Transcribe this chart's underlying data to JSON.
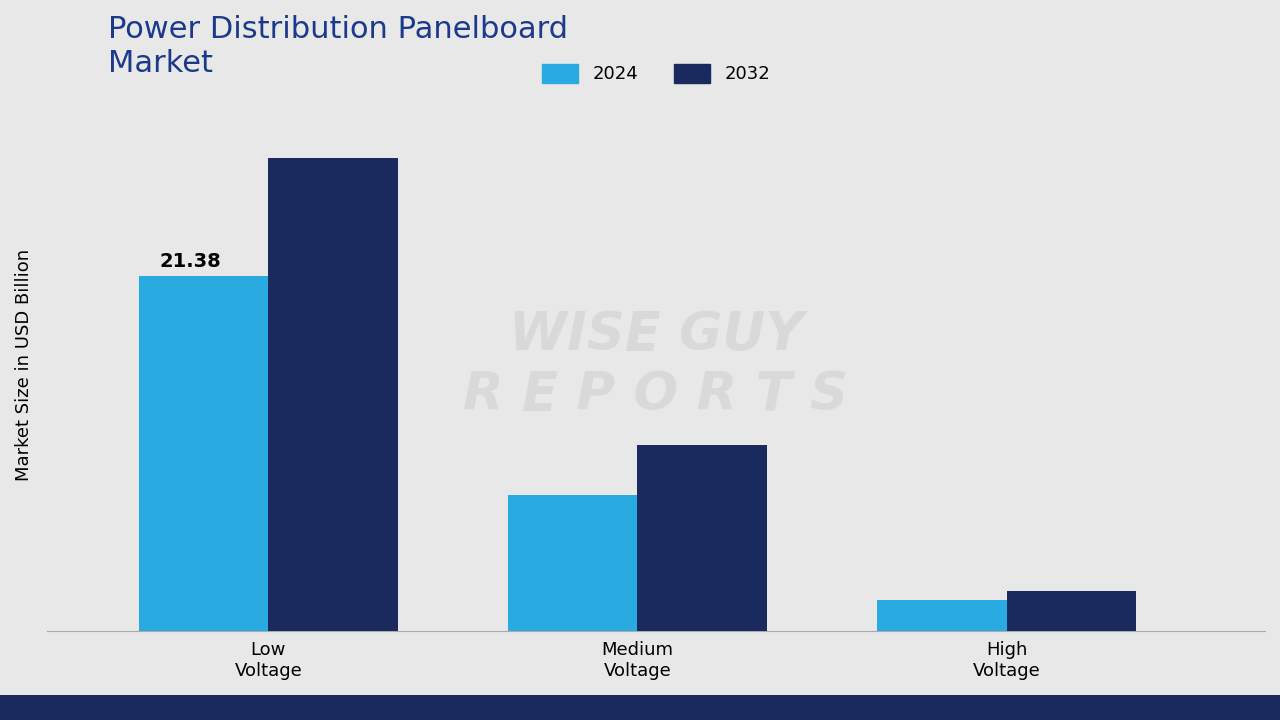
{
  "title": "Power Distribution Panelboard\nMarket",
  "ylabel": "Market Size in USD Billion",
  "categories": [
    "Low\nVoltage",
    "Medium\nVoltage",
    "High\nVoltage"
  ],
  "series_2024": [
    21.38,
    8.2,
    1.9
  ],
  "series_2032": [
    28.5,
    11.2,
    2.4
  ],
  "color_2024": "#29ABE2",
  "color_2032": "#1B2A5E",
  "background_color": "#E8E8E8",
  "plot_bg_color": "#E8E8E8",
  "label_2024": "2024",
  "label_2032": "2032",
  "annotation_value": "21.38",
  "annotation_bar": 0,
  "title_color": "#1B3A8C",
  "bar_width": 0.35,
  "ylim": [
    0,
    32
  ]
}
